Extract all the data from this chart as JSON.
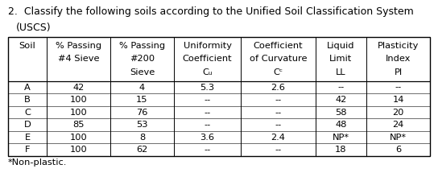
{
  "title_line1": "2.  Classify the following soils according to the Unified Soil Classification System",
  "title_line2": "    (USCS)",
  "footnote": "*Non-plastic.",
  "col_headers": [
    [
      "Soil",
      "",
      ""
    ],
    [
      "% Passing",
      "#4 Sieve",
      ""
    ],
    [
      "% Passing",
      "#200",
      "Sieve"
    ],
    [
      "Uniformity",
      "Coefficient",
      "Cᵤ"
    ],
    [
      "Coefficient",
      "of Curvature",
      "Cᶜ"
    ],
    [
      "Liquid",
      "Limit",
      "LL"
    ],
    [
      "Plasticity",
      "Index",
      "PI"
    ]
  ],
  "rows": [
    [
      "A",
      "42",
      "4",
      "5.3",
      "2.6",
      "--",
      "--"
    ],
    [
      "B",
      "100",
      "15",
      "--",
      "--",
      "42",
      "14"
    ],
    [
      "C",
      "100",
      "76",
      "--",
      "--",
      "58",
      "20"
    ],
    [
      "D",
      "85",
      "53",
      "--",
      "--",
      "48",
      "24"
    ],
    [
      "E",
      "100",
      "8",
      "3.6",
      "2.4",
      "NP*",
      "NP*"
    ],
    [
      "F",
      "100",
      "62",
      "--",
      "--",
      "18",
      "6"
    ]
  ],
  "col_rel_widths": [
    0.72,
    1.18,
    1.18,
    1.25,
    1.38,
    0.95,
    1.18
  ],
  "bg_color": "#ffffff",
  "text_color": "#000000",
  "title_fontsize": 9.0,
  "header_fontsize": 8.2,
  "cell_fontsize": 8.2,
  "footnote_fontsize": 8.2
}
